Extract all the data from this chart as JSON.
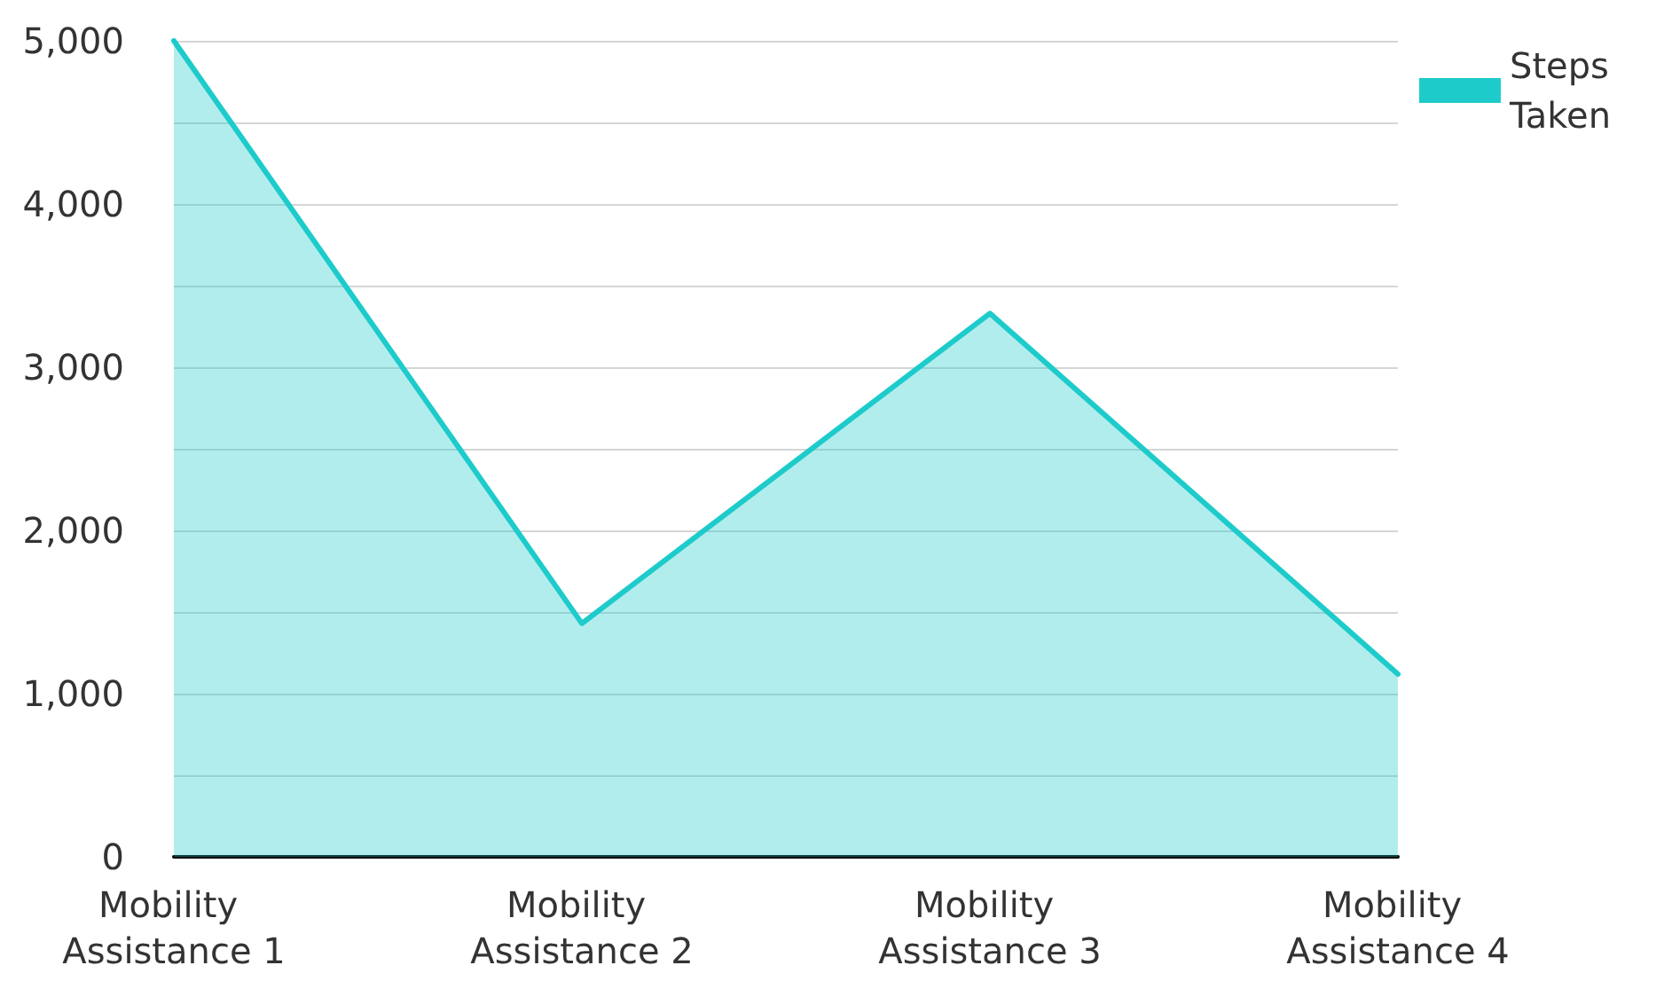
{
  "chart_data": {
    "type": "area",
    "categories": [
      "Mobility Assistance 1",
      "Mobility Assistance 2",
      "Mobility Assistance 3",
      "Mobility Assistance 4"
    ],
    "series": [
      {
        "name": "Steps Taken",
        "color": "#1ecbcb",
        "values": [
          5000,
          1430,
          3330,
          1120
        ]
      }
    ],
    "ylim": [
      0,
      5000
    ],
    "yticks": [
      {
        "value": 0,
        "label": "0"
      },
      {
        "value": 500,
        "label": null
      },
      {
        "value": 1000,
        "label": "1,000"
      },
      {
        "value": 1500,
        "label": null
      },
      {
        "value": 2000,
        "label": "2,000"
      },
      {
        "value": 2500,
        "label": null
      },
      {
        "value": 3000,
        "label": "3,000"
      },
      {
        "value": 3500,
        "label": null
      },
      {
        "value": 4000,
        "label": "4,000"
      },
      {
        "value": 4500,
        "label": null
      },
      {
        "value": 5000,
        "label": "5,000"
      }
    ],
    "grid": "y",
    "legend": "top right",
    "marker": "none",
    "line_style": "solid"
  }
}
